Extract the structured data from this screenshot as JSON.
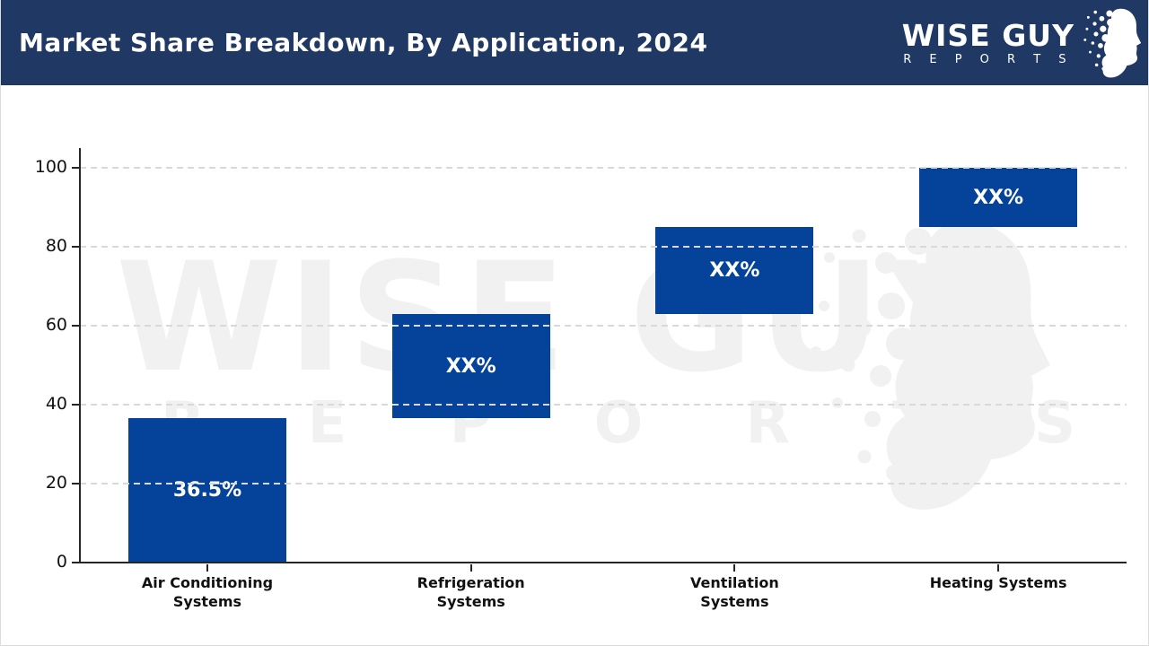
{
  "header": {
    "title": "Market Share Breakdown, By Application, 2024",
    "logo": {
      "line1": "WISE GUY",
      "line2": "R E P O R T S"
    }
  },
  "watermark": {
    "line1": "WISE GUY",
    "line2": "R E P O R T S"
  },
  "colors": {
    "header_bg": "#1f3864",
    "bar": "#05439b",
    "grid": "#d9d9d9",
    "axis": "#262626",
    "watermark": "#f1f1f1"
  },
  "chart_data": {
    "type": "bar",
    "variant": "waterfall",
    "title": "Market Share Breakdown, By Application, 2024",
    "categories": [
      "Air Conditioning\nSystems",
      "Refrigeration\nSystems",
      "Ventilation\nSystems",
      "Heating Systems"
    ],
    "series": [
      {
        "name": "Market Share (%)",
        "segments": [
          {
            "category": "Air Conditioning Systems",
            "start": 0,
            "end": 36.5,
            "label": "36.5%"
          },
          {
            "category": "Refrigeration Systems",
            "start": 36.5,
            "end": 63,
            "label": "XX%"
          },
          {
            "category": "Ventilation Systems",
            "start": 63,
            "end": 85,
            "label": "XX%"
          },
          {
            "category": "Heating Systems",
            "start": 85,
            "end": 100,
            "label": "XX%"
          }
        ]
      }
    ],
    "xlabel": "",
    "ylabel": "",
    "ylim": [
      0,
      100
    ],
    "yticks": [
      0,
      20,
      40,
      60,
      80,
      100
    ],
    "grid": true,
    "grid_style": "dashed",
    "legend": "none",
    "bar_color": "#05439b"
  }
}
